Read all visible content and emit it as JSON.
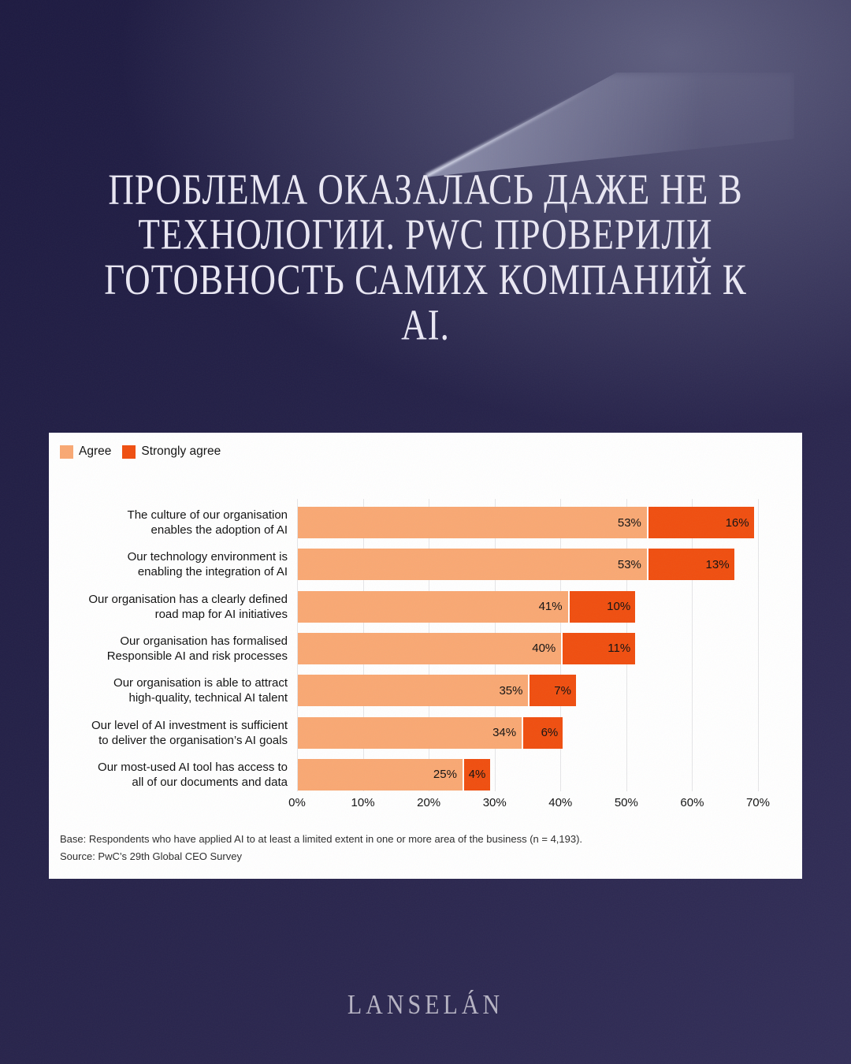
{
  "title": {
    "text": "ПРОБЛЕМА ОКАЗАЛАСЬ ДАЖЕ НЕ В\nТЕХНОЛОГИИ. PWC ПРОВЕРИЛИ\nГОТОВНОСТЬ САМИХ КОМПАНИЙ К\nAI."
  },
  "brand": {
    "text": "LANSELÁN"
  },
  "theme": {
    "background_dark": "#1c1940",
    "background_light": "#322e58",
    "glow_color": "#9497b2",
    "card_bg": "#ffffff",
    "title_color": "#eae8f4",
    "brand_color": "#b6b3c3",
    "agree_color": "#F9A873",
    "strongly_agree_color": "#F04E0F",
    "grid_color": "#e5e5e7",
    "chart_text_color": "#111111"
  },
  "chart_data": {
    "type": "bar",
    "orientation": "horizontal",
    "stacked": true,
    "grid": true,
    "legend_position": "top-left",
    "x_axis": {
      "ticks": [
        "0%",
        "10%",
        "20%",
        "30%",
        "40%",
        "50%",
        "60%",
        "70%"
      ],
      "min": 0,
      "max": 70,
      "unit": "%"
    },
    "legend": [
      {
        "name": "Agree",
        "color": "#F9A873"
      },
      {
        "name": "Strongly agree",
        "color": "#F04E0F"
      }
    ],
    "categories": [
      [
        "The culture of our organisation",
        "enables the adoption of AI"
      ],
      [
        "Our technology environment is",
        "enabling the integration of AI"
      ],
      [
        "Our organisation has a clearly defined",
        "road map for AI initiatives"
      ],
      [
        "Our organisation has formalised",
        "Responsible AI and risk processes"
      ],
      [
        "Our organisation is able to attract",
        "high-quality, technical AI talent"
      ],
      [
        "Our level of AI investment is sufficient",
        "to deliver the organisation’s AI goals"
      ],
      [
        "Our most-used AI tool has access to",
        "all of our documents and data"
      ]
    ],
    "series": [
      {
        "name": "Agree",
        "values": [
          53,
          53,
          41,
          40,
          35,
          34,
          25
        ]
      },
      {
        "name": "Strongly agree",
        "values": [
          16,
          13,
          10,
          11,
          7,
          6,
          4
        ]
      }
    ],
    "value_label_format": "{v}%",
    "footnotes": [
      "Base: Respondents who have applied AI to at least a limited extent in one or more area of the business (n = 4,193).",
      "Source: PwC’s 29th Global CEO Survey"
    ]
  }
}
